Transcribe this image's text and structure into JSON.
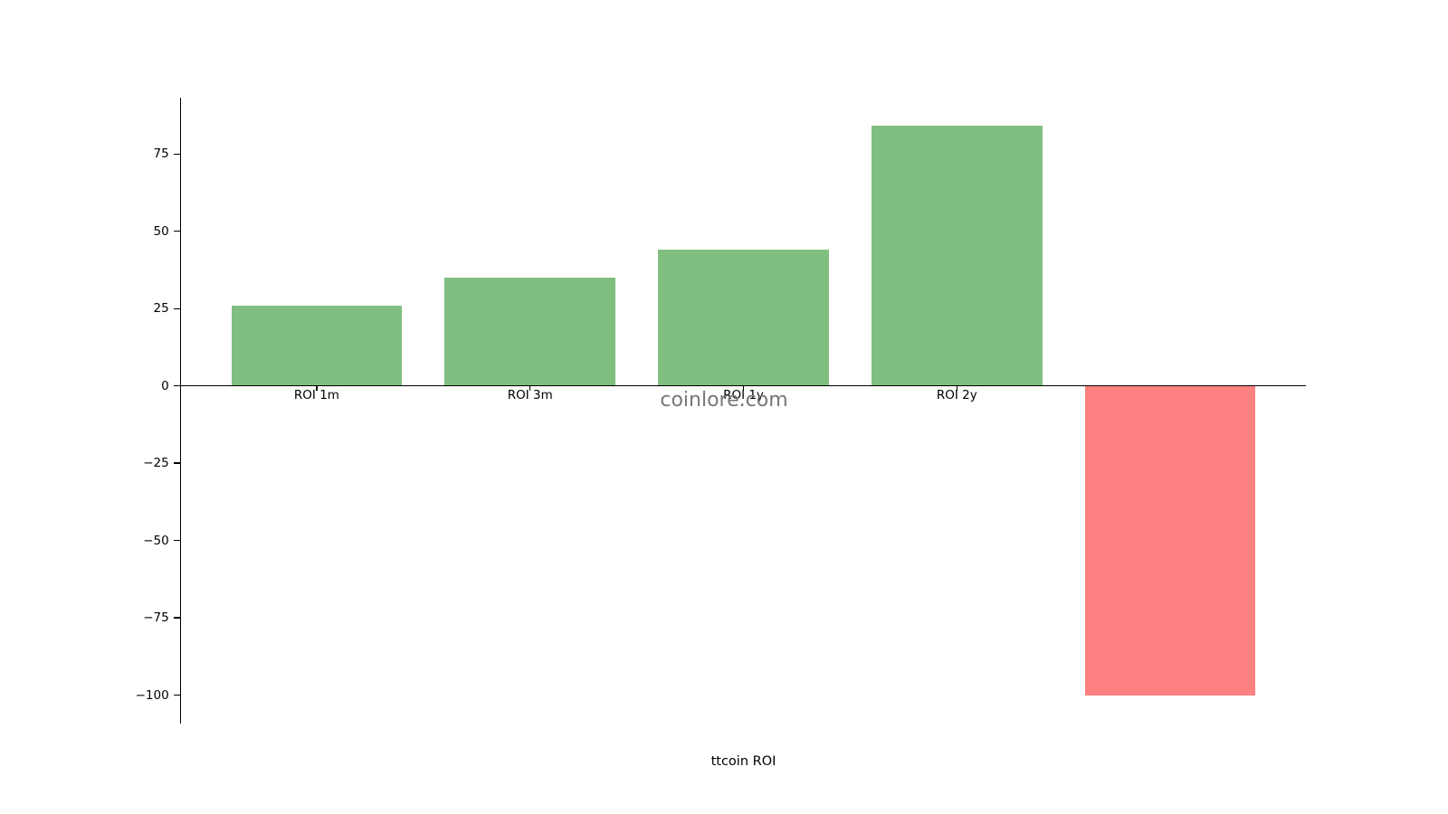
{
  "watermark": {
    "text": "coinlore.com",
    "color": "#777777"
  },
  "chart_data": {
    "type": "bar",
    "title": "",
    "xlabel": "ttcoin ROI",
    "ylabel": "",
    "categories": [
      "ROI 1m",
      "ROI 3m",
      "ROI 1y",
      "ROI 2y",
      ""
    ],
    "values": [
      26,
      35,
      44,
      84,
      -100
    ],
    "bar_colors": [
      "#80bf80",
      "#80bf80",
      "#80bf80",
      "#80bf80",
      "#ff8080"
    ],
    "positive_color": "#80bf80",
    "negative_color": "#ff8080",
    "yticks": [
      75,
      50,
      25,
      0,
      -25,
      -50,
      -75,
      -100
    ],
    "ylim": [
      -109.2,
      93.2
    ],
    "xlim": [
      -0.636,
      4.636
    ],
    "bar_width_units": 0.8,
    "grid": false,
    "legend_position": "none",
    "axis_color": "#000000",
    "baseline_value": 0
  }
}
